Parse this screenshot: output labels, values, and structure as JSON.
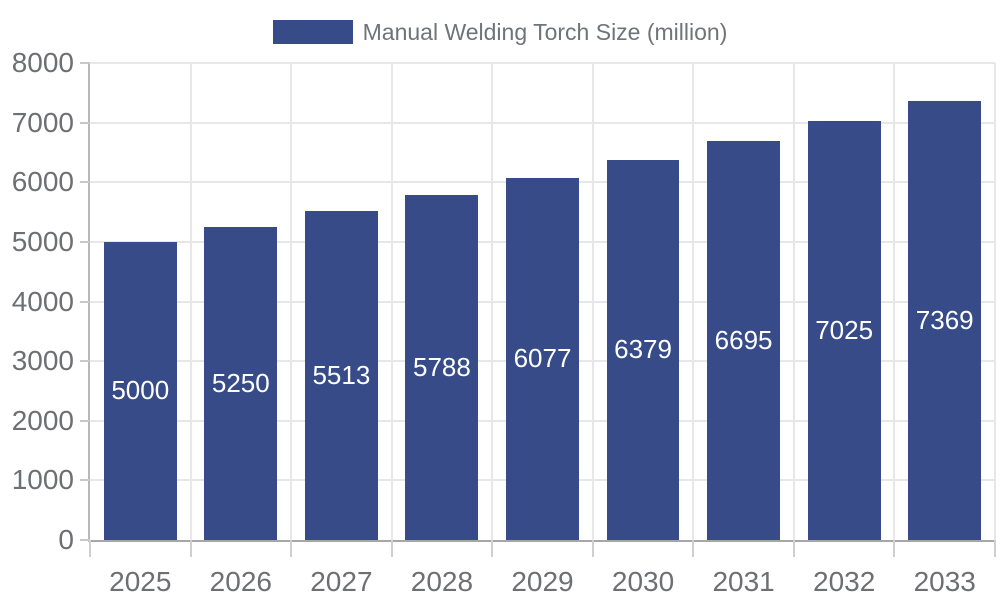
{
  "chart_data": {
    "type": "bar",
    "title": "Manual Welding Torch Size (million)",
    "legend": [
      "Manual Welding Torch Size (million)"
    ],
    "legend_position": "top-center",
    "categories": [
      "2025",
      "2026",
      "2027",
      "2028",
      "2029",
      "2030",
      "2031",
      "2032",
      "2033"
    ],
    "series": [
      {
        "name": "Manual Welding Torch Size (million)",
        "values": [
          5000,
          5250,
          5513,
          5788,
          6077,
          6379,
          6695,
          7025,
          7369
        ]
      }
    ],
    "bar_value_labels": [
      "5000",
      "5250",
      "5513",
      "5788",
      "6077",
      "6379",
      "6695",
      "7025",
      "7369"
    ],
    "xlabel": "",
    "ylabel": "",
    "ylim": [
      0,
      8000
    ],
    "yticks": [
      0,
      1000,
      2000,
      3000,
      4000,
      5000,
      6000,
      7000,
      8000
    ],
    "grid": true,
    "colors": {
      "bar": "#374b89",
      "grid": "#e7e7e9",
      "axis": "#a4a6a8",
      "tick_text": "#6e6f72",
      "legend_text": "#707379",
      "bar_label_text": "#ffffff",
      "background": "#ffffff"
    }
  }
}
